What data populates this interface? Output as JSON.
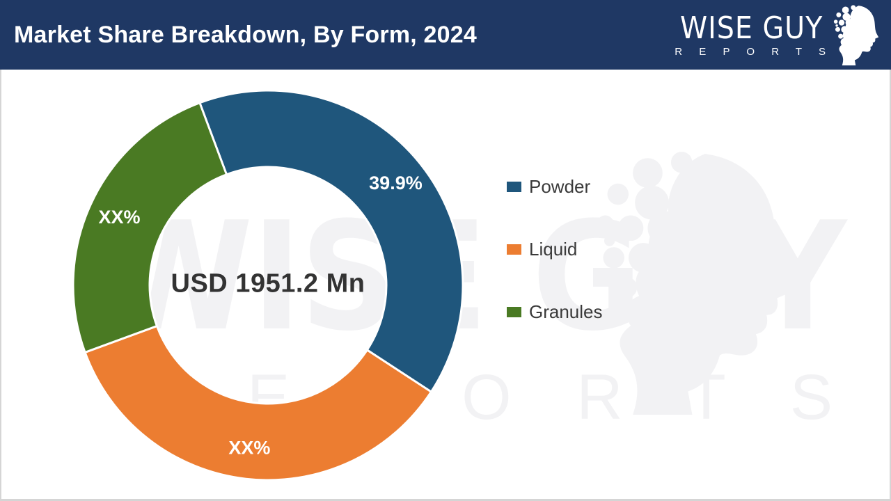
{
  "header": {
    "title": "Market Share Breakdown, By Form, 2024",
    "logo": {
      "line1": "WISE GUY",
      "line2": "R E P O R T S"
    }
  },
  "watermark": {
    "line1": "WISE GUY",
    "line2": "R E P O R T S"
  },
  "chart_data": {
    "type": "pie",
    "subtype": "donut",
    "title": "Market Share Breakdown, By Form, 2024",
    "center_label": "USD 1951.2 Mn",
    "categories": [
      "Powder",
      "Liquid",
      "Granules"
    ],
    "values": [
      39.9,
      35.2,
      24.9
    ],
    "segment_labels": [
      "39.9%",
      "XX%",
      "XX%"
    ],
    "colors": [
      "#1F567C",
      "#EC7D31",
      "#4A7A23"
    ],
    "start_angle_deg": 110.5,
    "direction": "clockwise",
    "legend_position": "right",
    "legend": {
      "items": [
        {
          "label": "Powder",
          "color": "#1F567C"
        },
        {
          "label": "Liquid",
          "color": "#EC7D31"
        },
        {
          "label": "Granules",
          "color": "#4A7A23"
        }
      ]
    }
  },
  "colors": {
    "header_bg": "#1F3864",
    "title_text": "#FFFFFF",
    "center_text": "#333333",
    "legend_text": "#3A3A3A",
    "segment_label_text": "#FFFFFF",
    "watermark": "#F2F2F4",
    "border": "#D5D5D5"
  }
}
